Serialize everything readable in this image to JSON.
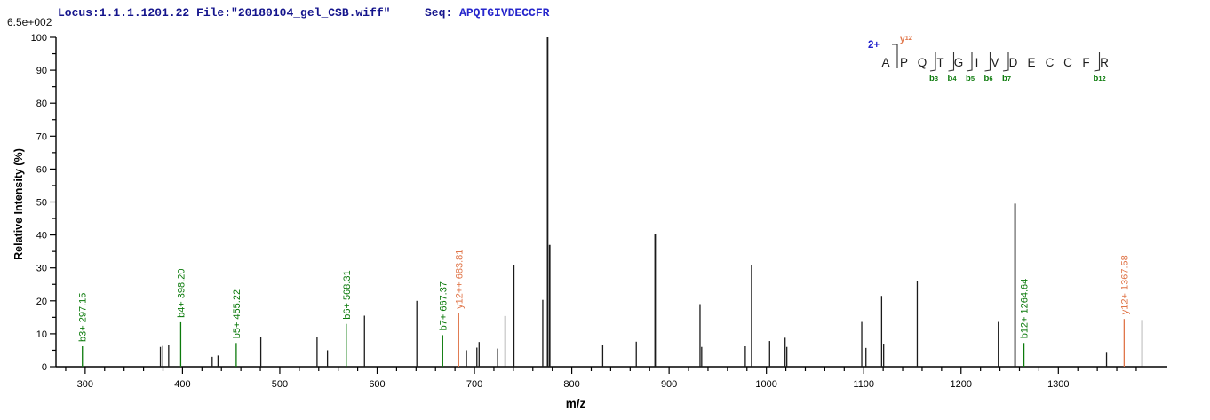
{
  "header": {
    "intensity_scale": "6.5e+002",
    "locus_file": "Locus:1.1.1.1201.22 File:\"20180104_gel_CSB.wiff\"",
    "seq_label": "Seq: ",
    "seq_value": "APQTGIVDECCFR"
  },
  "colors": {
    "header_text": "#14148c",
    "seq_text": "#2626cc",
    "b_ion": "#0b7a0b",
    "y_ion": "#e0764a",
    "peak": "#1a1a1a",
    "axis": "#000000",
    "charge": "#2222cc",
    "residue_text": "#1c1c1c"
  },
  "peptide_annotation": {
    "charge_label": "2+",
    "residues": [
      "A",
      "P",
      "Q",
      "T",
      "G",
      "I",
      "V",
      "D",
      "E",
      "C",
      "C",
      "F",
      "R"
    ],
    "y_ion_markers": [
      {
        "label_main": "y",
        "label_sup": "12",
        "after_index": 0
      }
    ],
    "b_ion_markers": [
      {
        "label_main": "b",
        "label_sup": "3",
        "after_index": 2
      },
      {
        "label_main": "b",
        "label_sup": "4",
        "after_index": 3
      },
      {
        "label_main": "b",
        "label_sup": "5",
        "after_index": 4
      },
      {
        "label_main": "b",
        "label_sup": "6",
        "after_index": 5
      },
      {
        "label_main": "b",
        "label_sup": "7",
        "after_index": 6
      },
      {
        "label_main": "b",
        "label_sup": "12",
        "after_index": 11
      }
    ]
  },
  "chart_data": {
    "type": "bar",
    "variant": "ms2-stick-spectrum",
    "title": "",
    "xlabel": "m/z",
    "ylabel": "Relative  Intensity (%)",
    "xlim": [
      270,
      1412
    ],
    "ylim": [
      0,
      100
    ],
    "x_major_ticks": [
      300,
      400,
      500,
      600,
      700,
      800,
      900,
      1000,
      1100,
      1200,
      1300
    ],
    "x_minor_tick_step": 20,
    "x_minor_tick_range": [
      280,
      1380
    ],
    "y_major_tick_step": 10,
    "y_minor_tick_step": 5,
    "grid": false,
    "legend": false,
    "peaks": [
      {
        "mz": 297.15,
        "intensity": 6.2,
        "color": "green",
        "label": "b3+ 297.15"
      },
      {
        "mz": 377.3,
        "intensity": 6.0,
        "color": "black"
      },
      {
        "mz": 379.8,
        "intensity": 6.3,
        "color": "black"
      },
      {
        "mz": 385.8,
        "intensity": 6.6,
        "color": "black"
      },
      {
        "mz": 398.2,
        "intensity": 13.5,
        "color": "green",
        "label": "b4+ 398.20"
      },
      {
        "mz": 430.5,
        "intensity": 3.0,
        "color": "black"
      },
      {
        "mz": 436.5,
        "intensity": 3.4,
        "color": "black"
      },
      {
        "mz": 455.22,
        "intensity": 7.2,
        "color": "green",
        "label": "b5+ 455.22"
      },
      {
        "mz": 480.5,
        "intensity": 9.0,
        "color": "black"
      },
      {
        "mz": 538.3,
        "intensity": 9.0,
        "color": "black"
      },
      {
        "mz": 549.0,
        "intensity": 5.0,
        "color": "black"
      },
      {
        "mz": 568.31,
        "intensity": 13.0,
        "color": "green",
        "label": "b6+ 568.31"
      },
      {
        "mz": 587.0,
        "intensity": 15.5,
        "color": "black"
      },
      {
        "mz": 640.8,
        "intensity": 20.0,
        "color": "black"
      },
      {
        "mz": 667.37,
        "intensity": 9.6,
        "color": "green",
        "label": "b7+ 667.37"
      },
      {
        "mz": 683.81,
        "intensity": 16.2,
        "color": "orange",
        "label": "y12++ 683.81"
      },
      {
        "mz": 691.8,
        "intensity": 5.0,
        "color": "black"
      },
      {
        "mz": 702.5,
        "intensity": 5.8,
        "color": "black"
      },
      {
        "mz": 704.8,
        "intensity": 7.5,
        "color": "black"
      },
      {
        "mz": 723.8,
        "intensity": 5.5,
        "color": "black"
      },
      {
        "mz": 731.5,
        "intensity": 15.4,
        "color": "black"
      },
      {
        "mz": 740.6,
        "intensity": 31.0,
        "color": "black"
      },
      {
        "mz": 770.2,
        "intensity": 20.3,
        "color": "black"
      },
      {
        "mz": 775.2,
        "intensity": 100.0,
        "color": "black"
      },
      {
        "mz": 777.3,
        "intensity": 37.0,
        "color": "black"
      },
      {
        "mz": 831.8,
        "intensity": 6.6,
        "color": "black"
      },
      {
        "mz": 866.3,
        "intensity": 7.6,
        "color": "black"
      },
      {
        "mz": 885.7,
        "intensity": 40.2,
        "color": "black"
      },
      {
        "mz": 931.8,
        "intensity": 19.0,
        "color": "black"
      },
      {
        "mz": 933.5,
        "intensity": 6.0,
        "color": "black"
      },
      {
        "mz": 978.3,
        "intensity": 6.2,
        "color": "black"
      },
      {
        "mz": 984.7,
        "intensity": 31.0,
        "color": "black"
      },
      {
        "mz": 1003.3,
        "intensity": 7.8,
        "color": "black"
      },
      {
        "mz": 1019.2,
        "intensity": 8.8,
        "color": "black"
      },
      {
        "mz": 1021.0,
        "intensity": 6.0,
        "color": "black"
      },
      {
        "mz": 1098.0,
        "intensity": 13.6,
        "color": "black"
      },
      {
        "mz": 1102.3,
        "intensity": 5.7,
        "color": "black"
      },
      {
        "mz": 1118.4,
        "intensity": 21.5,
        "color": "black"
      },
      {
        "mz": 1120.5,
        "intensity": 7.0,
        "color": "black"
      },
      {
        "mz": 1155.0,
        "intensity": 26.0,
        "color": "black"
      },
      {
        "mz": 1238.3,
        "intensity": 13.6,
        "color": "black"
      },
      {
        "mz": 1255.5,
        "intensity": 49.5,
        "color": "black"
      },
      {
        "mz": 1264.64,
        "intensity": 7.2,
        "color": "green",
        "label": "b12+ 1264.64"
      },
      {
        "mz": 1349.5,
        "intensity": 4.5,
        "color": "black"
      },
      {
        "mz": 1367.58,
        "intensity": 14.5,
        "color": "orange",
        "label": "y12+ 1367.58"
      },
      {
        "mz": 1386.0,
        "intensity": 14.2,
        "color": "black"
      }
    ]
  }
}
